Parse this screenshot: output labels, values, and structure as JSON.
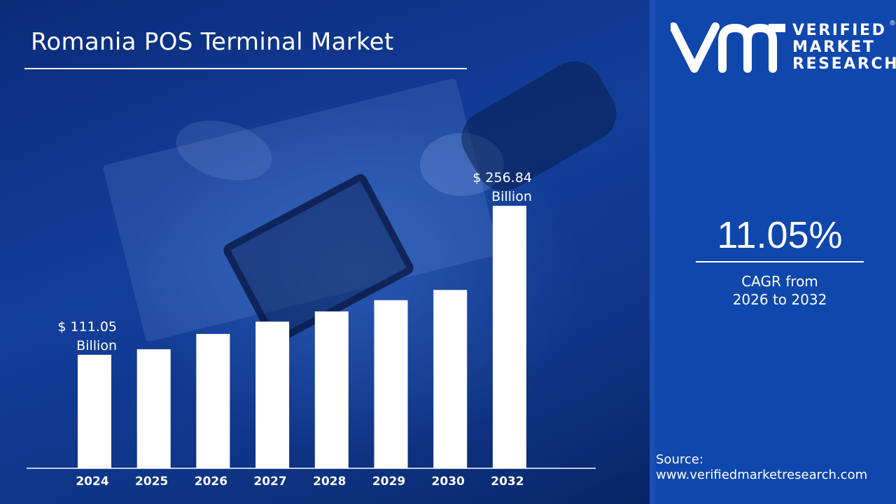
{
  "header": {
    "title": "Romania POS Terminal Market"
  },
  "logo": {
    "line1": "VERIFIED",
    "line2": "MARKET",
    "line3": "RESEARCH",
    "registered": "®"
  },
  "cagr": {
    "value": "11.05%",
    "label_line1": "CAGR from",
    "label_line2": "2026 to 2032"
  },
  "source": {
    "label": "Source:",
    "url": "www.verifiedmarketresearch.com"
  },
  "colors": {
    "accent": "#0f47ad",
    "bar": "#ffffff",
    "text": "#ffffff"
  },
  "chart_data": {
    "type": "bar",
    "categories": [
      "2024",
      "2025",
      "2026",
      "2027",
      "2028",
      "2029",
      "2030",
      "2032"
    ],
    "values": [
      111.05,
      116.5,
      131.5,
      143.5,
      153.5,
      164.5,
      174.5,
      256.84
    ],
    "data_labels": [
      {
        "index": 0,
        "line1": "$ 111.05",
        "line2": "Billion"
      },
      {
        "index": 7,
        "line1": "$ 256.84",
        "line2": "Billion"
      }
    ],
    "ylim": [
      0,
      256.84
    ],
    "grid": false,
    "legend": "none"
  }
}
